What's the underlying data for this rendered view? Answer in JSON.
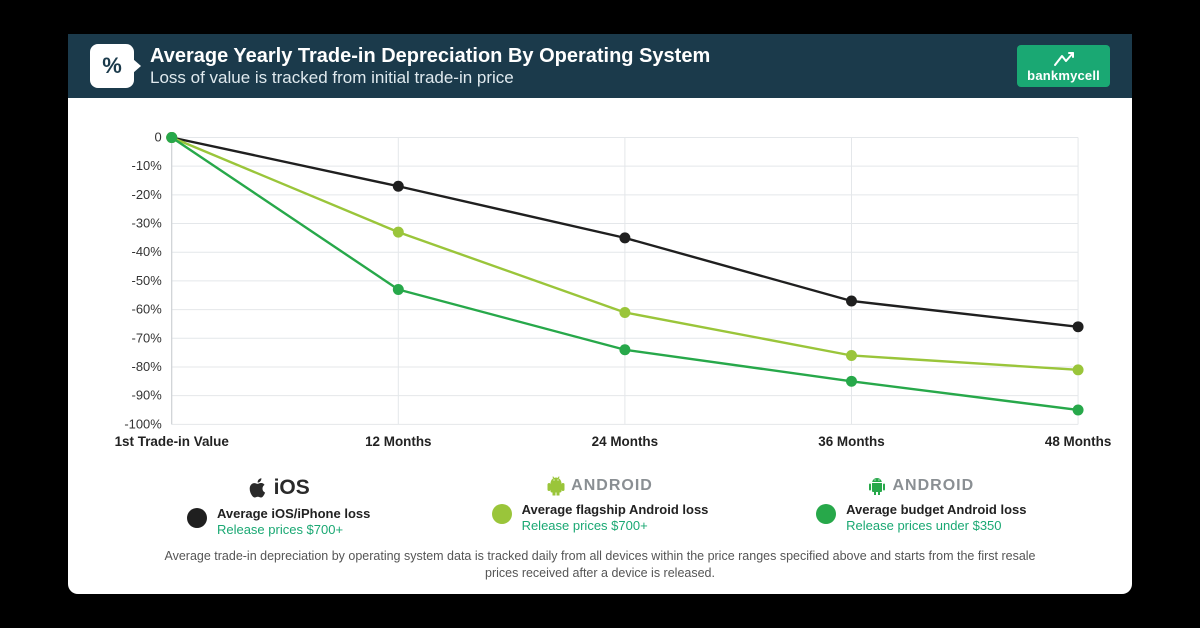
{
  "header": {
    "badge_glyph": "%",
    "title": "Average Yearly Trade-in Depreciation By Operating System",
    "subtitle": "Loss of value is tracked from initial trade-in price",
    "brand": "bankmycell",
    "bg_color": "#1b3a4b",
    "brand_bg": "#1aa873"
  },
  "chart": {
    "type": "line",
    "x_labels": [
      "1st Trade-in Value",
      "12 Months",
      "24 Months",
      "36 Months",
      "48 Months"
    ],
    "y_ticks": [
      0,
      -10,
      -20,
      -30,
      -40,
      -50,
      -60,
      -70,
      -80,
      -90,
      -100
    ],
    "y_tick_labels": [
      "0",
      "-10%",
      "-20%",
      "-30%",
      "-40%",
      "-50%",
      "-60%",
      "-70%",
      "-80%",
      "-90%",
      "-100%"
    ],
    "ylim": [
      0,
      -100
    ],
    "grid_color": "#e4e7ea",
    "axis_color": "#c9cdd1",
    "series": [
      {
        "key": "ios",
        "color": "#1f1f1f",
        "values": [
          0,
          -17,
          -35,
          -57,
          -66
        ],
        "marker_r": 5.5,
        "line_w": 2.4
      },
      {
        "key": "flag",
        "color": "#9ac53a",
        "values": [
          0,
          -33,
          -61,
          -76,
          -81
        ],
        "marker_r": 5.5,
        "line_w": 2.4
      },
      {
        "key": "budget",
        "color": "#27a84a",
        "values": [
          0,
          -53,
          -74,
          -85,
          -95
        ],
        "marker_r": 5.5,
        "line_w": 2.4
      }
    ]
  },
  "legend": {
    "ios": {
      "os_label": "iOS",
      "line1": "Average iOS/iPhone loss",
      "line2": "Release prices $700+",
      "dot_color": "#1f1f1f"
    },
    "flag": {
      "os_label": "ANDROID",
      "line1": "Average flagship Android loss",
      "line2": "Release prices $700+",
      "dot_color": "#9ac53a"
    },
    "budget": {
      "os_label": "ANDROID",
      "line1": "Average budget Android loss",
      "line2": "Release prices under $350",
      "dot_color": "#27a84a"
    }
  },
  "footnote": "Average trade-in depreciation by operating system data is tracked daily from all devices within the price ranges specified above and starts from the first resale prices received after a device is released."
}
